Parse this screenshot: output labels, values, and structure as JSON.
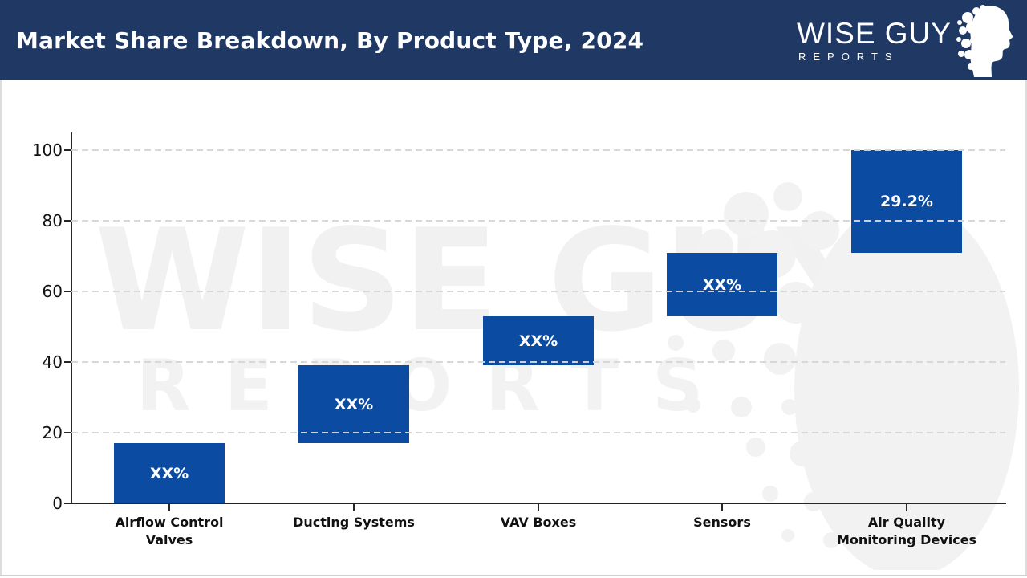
{
  "header": {
    "title": "Market Share Breakdown, By Product Type, 2024",
    "logo": {
      "line1": "WISE GUY",
      "line2": "REPORTS"
    }
  },
  "watermark": {
    "line1": "WISE GUY",
    "line2": "REPORTS"
  },
  "chart_data": {
    "type": "bar",
    "subtype": "waterfall",
    "title": "Market Share Breakdown, By Product Type, 2024",
    "categories": [
      "Airflow Control Valves",
      "Ducting Systems",
      "VAV Boxes",
      "Sensors",
      "Air Quality Monitoring Devices"
    ],
    "category_label_lines": [
      [
        "Airflow Control",
        "Valves"
      ],
      [
        "Ducting Systems"
      ],
      [
        "VAV Boxes"
      ],
      [
        "Sensors"
      ],
      [
        "Air Quality",
        "Monitoring Devices"
      ]
    ],
    "segments": [
      {
        "category": "Airflow Control Valves",
        "start": 0,
        "end": 17,
        "value_label": "XX%"
      },
      {
        "category": "Ducting Systems",
        "start": 17,
        "end": 39,
        "value_label": "XX%"
      },
      {
        "category": "VAV Boxes",
        "start": 39,
        "end": 53,
        "value_label": "XX%"
      },
      {
        "category": "Sensors",
        "start": 53,
        "end": 70.8,
        "value_label": "XX%"
      },
      {
        "category": "Air Quality Monitoring Devices",
        "start": 70.8,
        "end": 100,
        "value_label": "29.2%"
      }
    ],
    "ylim": [
      0,
      100
    ],
    "yticks": [
      0,
      20,
      40,
      60,
      80,
      100
    ],
    "xlabel": "",
    "ylabel": "",
    "grid": "horizontal-dashed-above-bars",
    "legend": "none",
    "colors": {
      "bar": "#0b4ba1",
      "value_label": "#ffffff",
      "header_bg": "#1f3864",
      "grid": "#d6d6d6",
      "axis": "#262626",
      "watermark": "#f1f1f1"
    }
  }
}
